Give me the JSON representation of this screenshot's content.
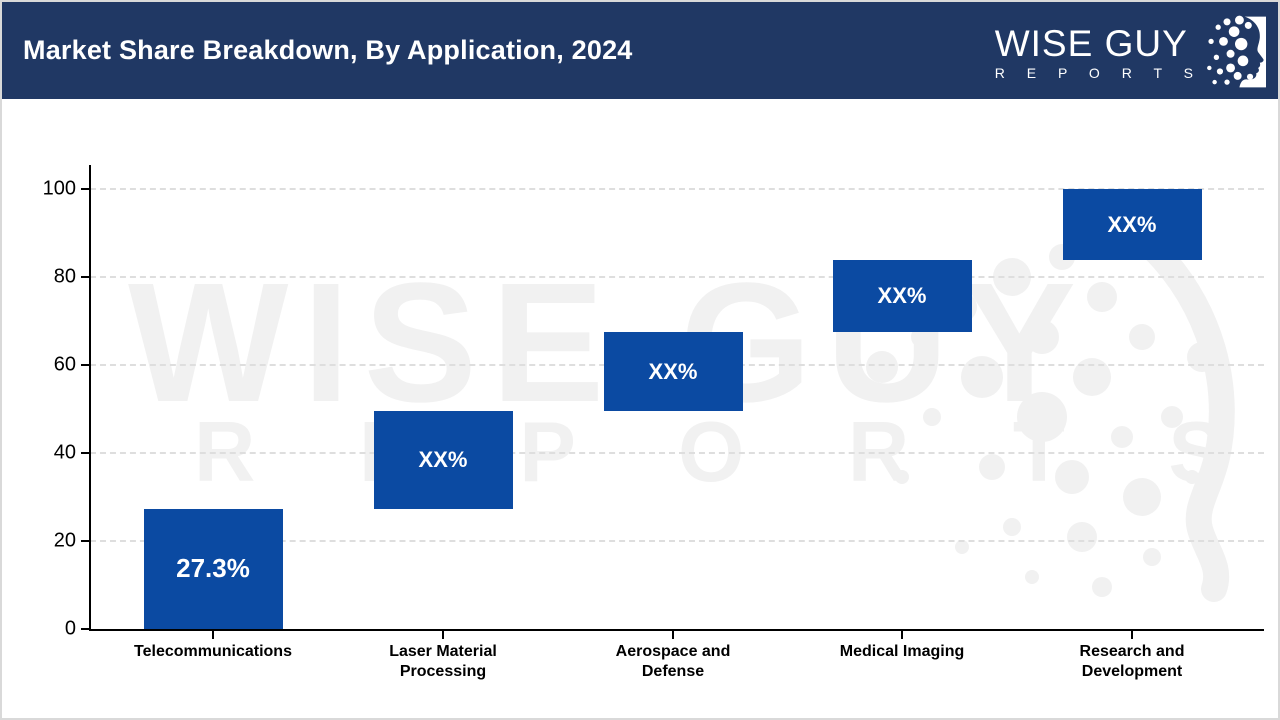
{
  "header": {
    "title": "Market Share Breakdown, By Application, 2024",
    "bg_color": "#203864",
    "logo": {
      "name": "WISE GUY",
      "subname": "R E P O R T S",
      "icon": "dotted-face-profile"
    }
  },
  "watermark": {
    "line1": "WISE GUY",
    "line2": "R E P O R T S"
  },
  "chart_data": {
    "type": "bar",
    "variant": "waterfall",
    "title": "Market Share Breakdown, By Application, 2024",
    "categories": [
      "Telecommunications",
      "Laser Material\nProcessing",
      "Aerospace and\nDefense",
      "Medical Imaging",
      "Research and\nDevelopment"
    ],
    "segments": [
      {
        "label": "27.3%",
        "start": 0,
        "end": 27.3
      },
      {
        "label": "XX%",
        "start": 27.3,
        "end": 49.5
      },
      {
        "label": "XX%",
        "start": 49.5,
        "end": 67.5
      },
      {
        "label": "XX%",
        "start": 67.5,
        "end": 83.8
      },
      {
        "label": "XX%",
        "start": 83.8,
        "end": 100
      }
    ],
    "xlabel": "",
    "ylabel": "",
    "ylim": [
      0,
      100
    ],
    "yticks": [
      0,
      20,
      40,
      60,
      80,
      100
    ],
    "grid": "horizontal-dashed",
    "legend": "none",
    "bar_color": "#0b4aa2",
    "bar_label_color": "#ffffff",
    "axis_color": "#000000",
    "gridline_color": "#dedede"
  }
}
